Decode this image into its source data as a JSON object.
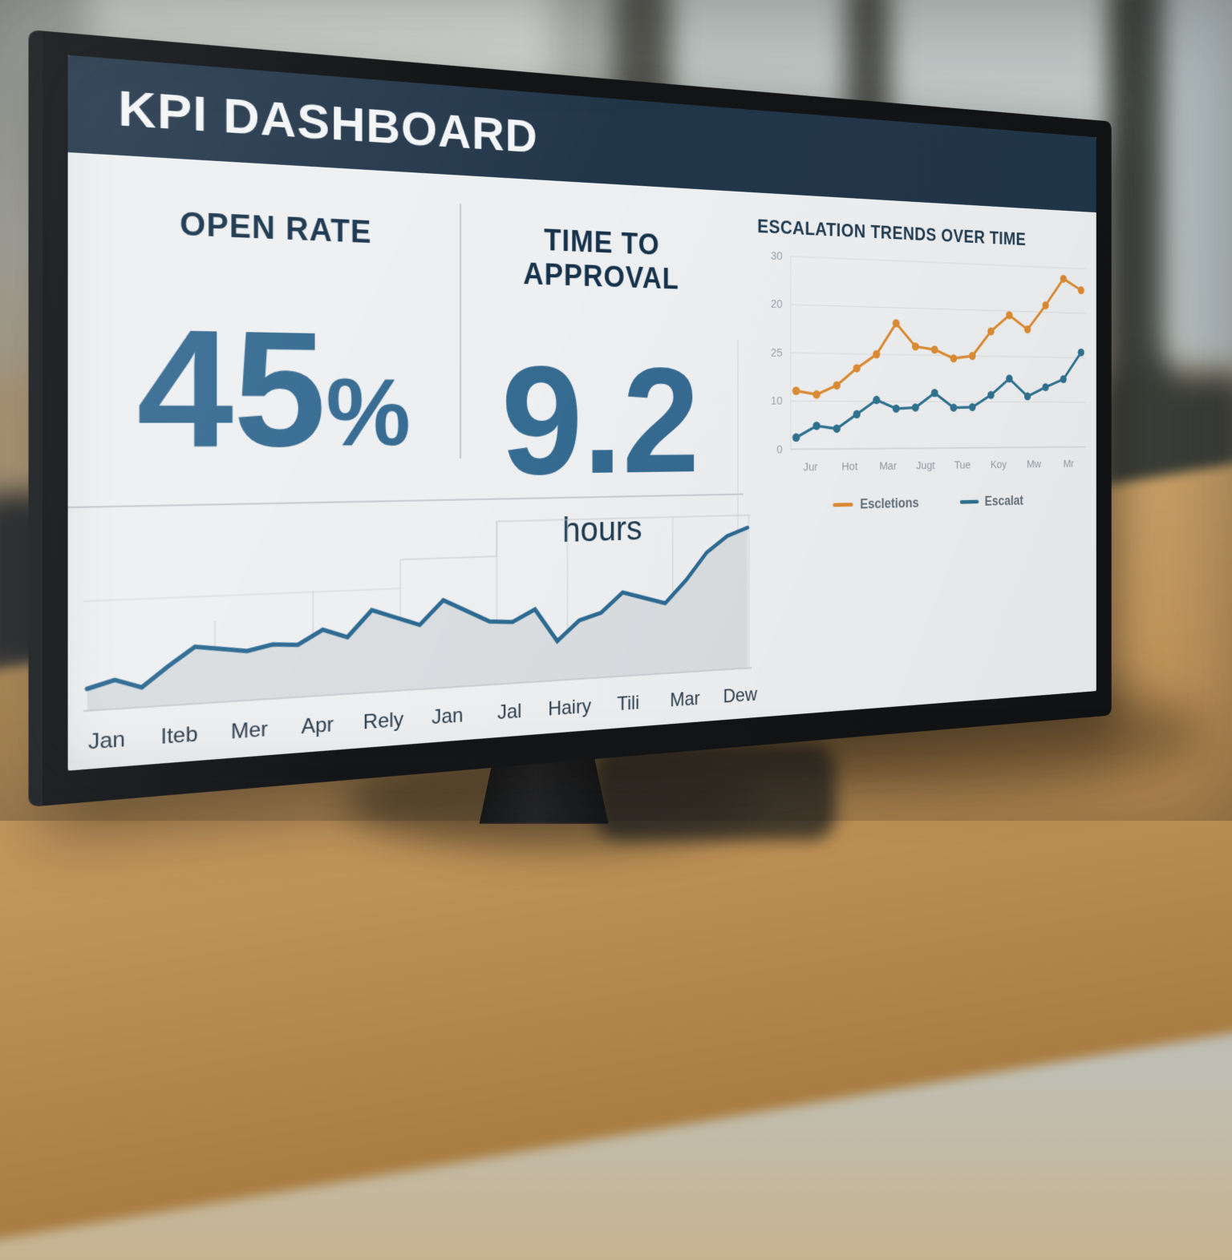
{
  "dashboard": {
    "title": "KPI DASHBOARD"
  },
  "kpis": [
    {
      "label": "OPEN RATE",
      "value": "45",
      "unit": "%"
    },
    {
      "label": "TIME TO APPROVAL",
      "value": "9.2",
      "unit_label": "hours"
    }
  ],
  "colors": {
    "header": "#22364a",
    "kpi_value": "#356a91",
    "escalations_line": "#dd8c32",
    "secondary_line": "#2f7390",
    "area_line": "#2d6a92",
    "area_fill": "#d8dbde"
  },
  "chart_data": [
    {
      "type": "line",
      "title": "ESCALATION TRENDS OVER TIME",
      "x": [
        "Jur",
        "Hot",
        "Mar",
        "Jugt",
        "Tue",
        "Koy",
        "Mw",
        "Mr"
      ],
      "yticks_top_to_bottom": [
        "30",
        "20",
        "25",
        "10",
        "0"
      ],
      "ylim": [
        0,
        33
      ],
      "grid": true,
      "legend_position": "bottom",
      "series": [
        {
          "name": "Escletions",
          "color": "#dd8c32",
          "values": [
            10,
            9.4,
            11,
            14,
            16.5,
            22,
            18,
            17.5,
            16,
            16.5,
            21,
            24,
            21.5,
            26,
            31,
            29
          ]
        },
        {
          "name": "Escalat",
          "color": "#2f7390",
          "values": [
            2,
            4,
            3.5,
            6,
            8.5,
            7,
            7.2,
            9.8,
            7.2,
            7.3,
            9.5,
            12.5,
            9.3,
            11,
            12.5,
            17.5
          ]
        }
      ]
    },
    {
      "type": "area",
      "title": "",
      "categories": [
        "Jan",
        "Iteb",
        "Mer",
        "Apr",
        "Rely",
        "Jan",
        "Jal",
        "Hairy",
        "Tili",
        "Mar",
        "Dew"
      ],
      "values": [
        12,
        16,
        11,
        22,
        32,
        30,
        28,
        31,
        30,
        38,
        33,
        48,
        43,
        38,
        52,
        45,
        38,
        37,
        44,
        24,
        36,
        40,
        52,
        48,
        44,
        58,
        75,
        85,
        90
      ],
      "ylim": [
        0,
        100
      ],
      "line_color": "#2d6a92",
      "fill_color": "#d8dbde"
    }
  ]
}
